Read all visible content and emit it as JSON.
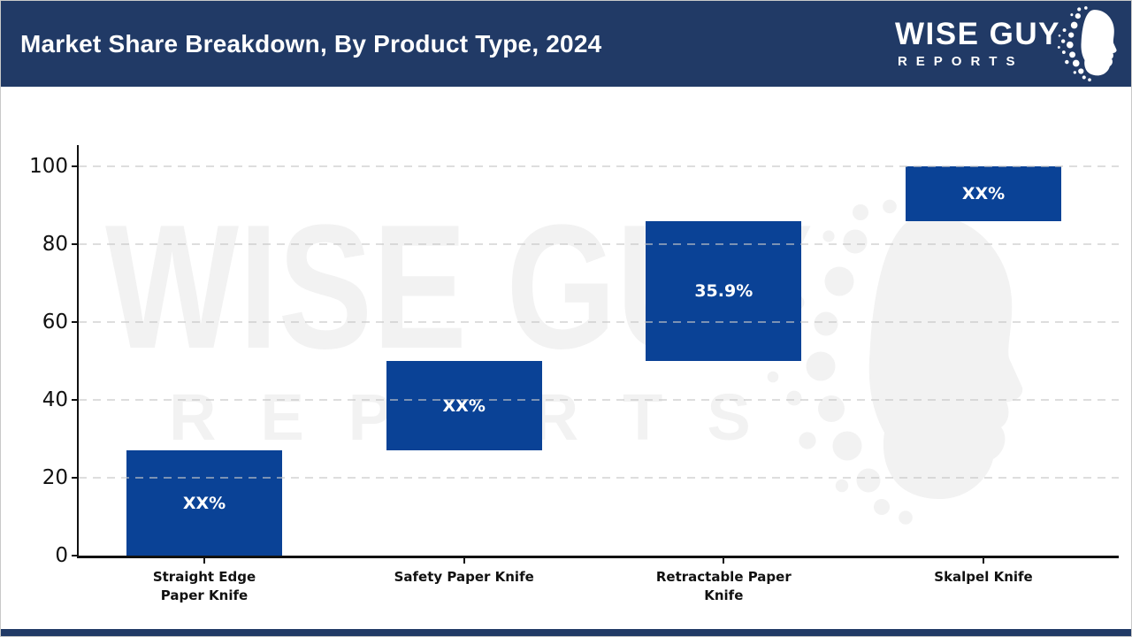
{
  "header": {
    "title": "Market Share Breakdown, By Product Type, 2024",
    "bg_color": "#213a66",
    "logo": {
      "line1": "WISE GUY",
      "line2": "REPORTS"
    }
  },
  "watermark": {
    "line1": "WISE GUY",
    "line2": "REPORTS"
  },
  "footer": {
    "bg_color": "#213a66"
  },
  "chart_data": {
    "type": "bar",
    "subtype": "floating-segment waterfall (cumulative market share)",
    "title": "Market Share Breakdown, By Product Type, 2024",
    "categories": [
      "Straight Edge Paper Knife",
      "Safety Paper Knife",
      "Retractable Paper Knife",
      "Skalpel Knife"
    ],
    "categories_lines": [
      [
        "Straight Edge",
        "Paper Knife"
      ],
      [
        "Safety Paper Knife"
      ],
      [
        "Retractable Paper",
        "Knife"
      ],
      [
        "Skalpel Knife"
      ]
    ],
    "segments": [
      {
        "category": "Straight Edge Paper Knife",
        "start": 0,
        "end": 27,
        "value": 27,
        "label": "XX%"
      },
      {
        "category": "Safety Paper Knife",
        "start": 27,
        "end": 50,
        "value": 23,
        "label": "XX%"
      },
      {
        "category": "Retractable Paper Knife",
        "start": 50,
        "end": 85.9,
        "value": 35.9,
        "label": "35.9%"
      },
      {
        "category": "Skalpel Knife",
        "start": 85.9,
        "end": 100,
        "value": 14.1,
        "label": "XX%"
      }
    ],
    "xlabel": "",
    "ylabel": "",
    "ylim": [
      0,
      100
    ],
    "yticks": [
      0,
      20,
      40,
      60,
      80,
      100
    ],
    "grid": "dashed horizontal gridlines, drawn over bars",
    "legend": "none",
    "bar_color": "#0a4296",
    "label_color": "#ffffff",
    "axis_color": "#111111"
  }
}
